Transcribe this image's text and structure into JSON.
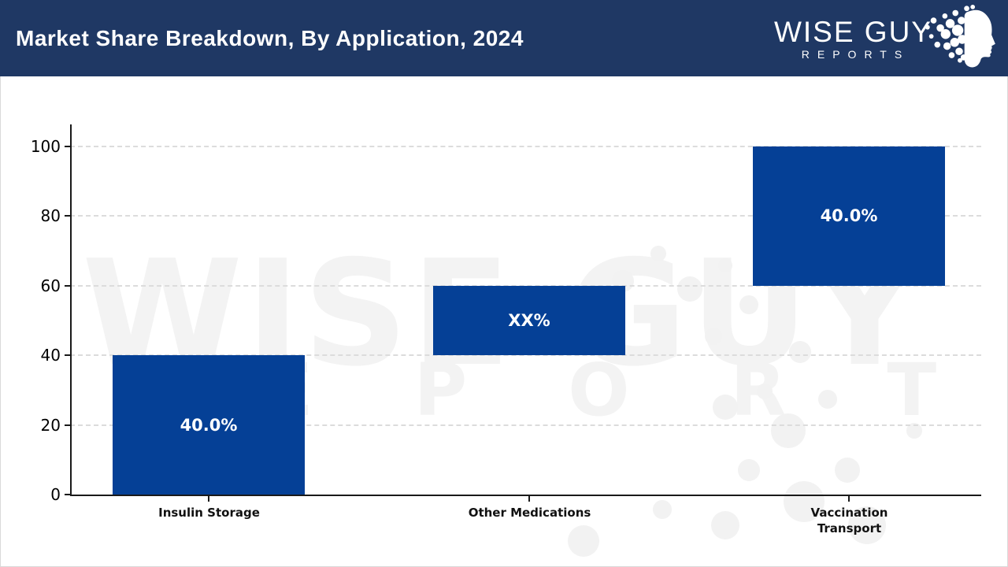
{
  "header": {
    "title": "Market Share Breakdown, By Application, 2024",
    "logo": {
      "line1": "WISE GUY",
      "line2": "REPORTS"
    }
  },
  "watermark": {
    "line1": "WISE GUY",
    "line2": "REPORTS"
  },
  "chart_data": {
    "type": "bar",
    "subtype": "waterfall",
    "title": "Market Share Breakdown, By Application, 2024",
    "categories": [
      "Insulin Storage",
      "Other Medications",
      "Vaccination Transport"
    ],
    "bars": [
      {
        "category": "Insulin Storage",
        "start": 0,
        "end": 40,
        "label": "40.0%"
      },
      {
        "category": "Other Medications",
        "start": 40,
        "end": 60,
        "label": "XX%"
      },
      {
        "category": "Vaccination Transport",
        "start": 60,
        "end": 100,
        "label": "40.0%"
      }
    ],
    "yticks": [
      0,
      20,
      40,
      60,
      80,
      100
    ],
    "ylim": [
      0,
      100
    ],
    "xlabel": "",
    "ylabel": "",
    "legend": null,
    "grid": "horizontal-dashed",
    "bar_color": "#054096"
  },
  "colors": {
    "header_bg": "#1f3864",
    "bar": "#054096",
    "grid": "#dcdcdc",
    "axis": "#1a1a1a",
    "watermark": "#f3f3f3",
    "panel_border": "#d9d9d9"
  }
}
